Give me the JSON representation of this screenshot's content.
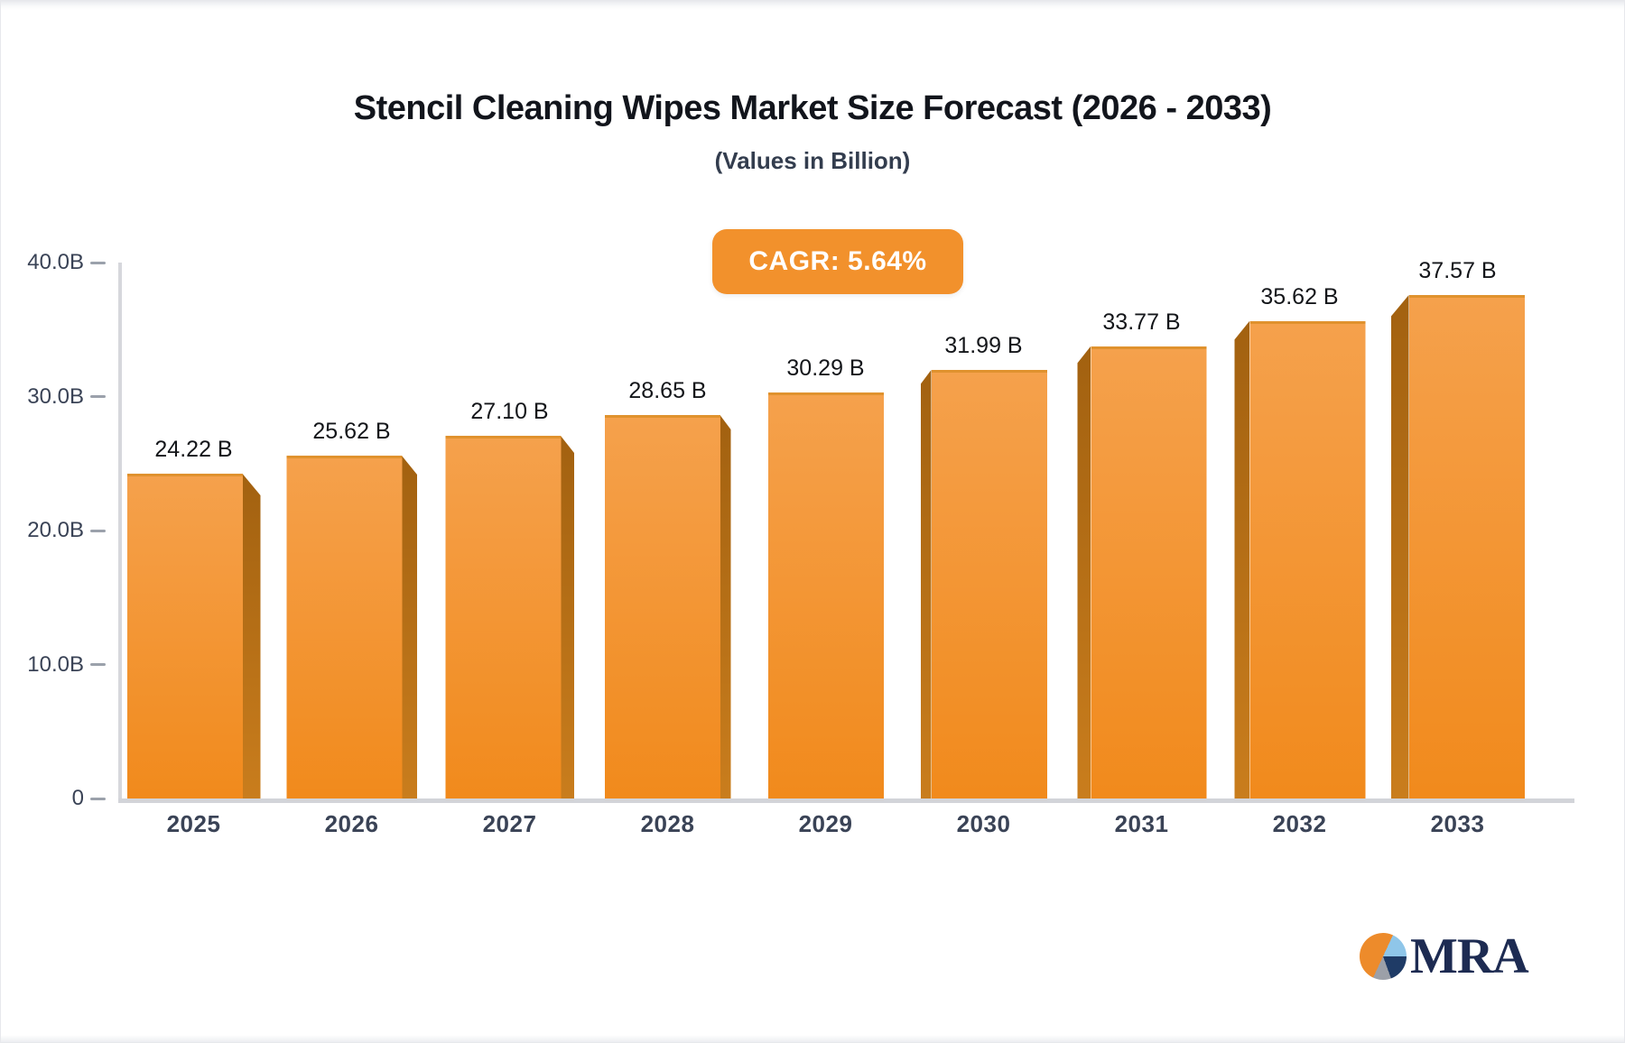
{
  "title": "Stencil Cleaning Wipes Market Size Forecast (2026 - 2033)",
  "subtitle": "(Values in Billion)",
  "badge": {
    "label": "CAGR: 5.64%",
    "color": "#f2912c"
  },
  "logo": {
    "text": "MRA",
    "pie_colors": {
      "orange": "#ed8b2b",
      "light_blue": "#8fc6e9",
      "navy": "#1f3b66",
      "gray": "#9ca0a8"
    }
  },
  "chart_data": {
    "type": "bar",
    "title": "Stencil Cleaning Wipes Market Size Forecast (2026 - 2033)",
    "subtitle": "(Values in Billion)",
    "annotation": "CAGR: 5.64%",
    "categories": [
      "2025",
      "2026",
      "2027",
      "2028",
      "2029",
      "2030",
      "2031",
      "2032",
      "2033"
    ],
    "values": [
      24.22,
      25.62,
      27.1,
      28.65,
      30.29,
      31.99,
      33.77,
      35.62,
      37.57
    ],
    "value_labels": [
      "24.22 B",
      "25.62 B",
      "27.10 B",
      "28.65 B",
      "30.29 B",
      "31.99 B",
      "33.77 B",
      "35.62 B",
      "37.57 B"
    ],
    "xlabel": "",
    "ylabel": "",
    "ylim": [
      0,
      40
    ],
    "y_ticks": [
      {
        "value": 40,
        "label": "40.0B"
      },
      {
        "value": 30,
        "label": "30.0B"
      },
      {
        "value": 20,
        "label": "20.0B"
      },
      {
        "value": 10,
        "label": "10.0B"
      },
      {
        "value": 0,
        "label": "0"
      }
    ],
    "grid": "off",
    "legend": "none",
    "bar_colors": {
      "face_top": "#f5a14c",
      "face_bottom": "#f18a1c",
      "side_top": "#a26110",
      "side_bottom": "#c97d1d"
    }
  }
}
